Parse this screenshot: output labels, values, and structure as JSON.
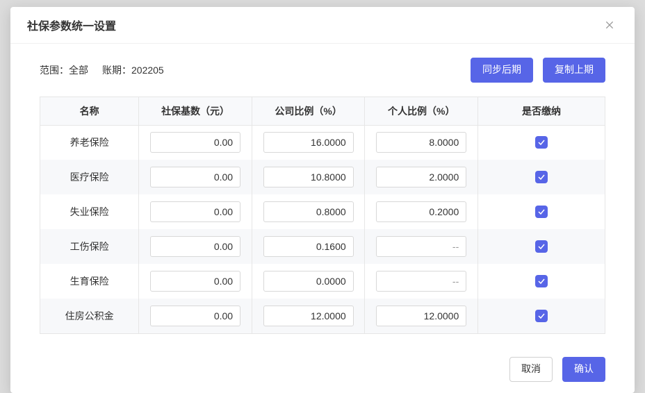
{
  "modal": {
    "title": "社保参数统一设置",
    "scope_label": "范围：",
    "scope_value": "全部",
    "period_label": "账期：",
    "period_value": "202205",
    "sync_button": "同步后期",
    "copy_button": "复制上期",
    "cancel_button": "取消",
    "confirm_button": "确认"
  },
  "table": {
    "headers": {
      "name": "名称",
      "base": "社保基数（元）",
      "company": "公司比例（%）",
      "personal": "个人比例（%）",
      "pay": "是否缴纳"
    },
    "rows": [
      {
        "name": "养老保险",
        "base": "0.00",
        "company": "16.0000",
        "personal": "8.0000",
        "personal_disabled": false,
        "pay": true
      },
      {
        "name": "医疗保险",
        "base": "0.00",
        "company": "10.8000",
        "personal": "2.0000",
        "personal_disabled": false,
        "pay": true
      },
      {
        "name": "失业保险",
        "base": "0.00",
        "company": "0.8000",
        "personal": "0.2000",
        "personal_disabled": false,
        "pay": true
      },
      {
        "name": "工伤保险",
        "base": "0.00",
        "company": "0.1600",
        "personal": "--",
        "personal_disabled": true,
        "pay": true
      },
      {
        "name": "生育保险",
        "base": "0.00",
        "company": "0.0000",
        "personal": "--",
        "personal_disabled": true,
        "pay": true
      },
      {
        "name": "住房公积金",
        "base": "0.00",
        "company": "12.0000",
        "personal": "12.0000",
        "personal_disabled": false,
        "pay": true
      }
    ]
  },
  "colors": {
    "primary": "#5765e7",
    "border": "#e6e6e6",
    "header_bg": "#f8f9fb",
    "row_even_bg": "#f7f8fa",
    "text": "#333333"
  }
}
